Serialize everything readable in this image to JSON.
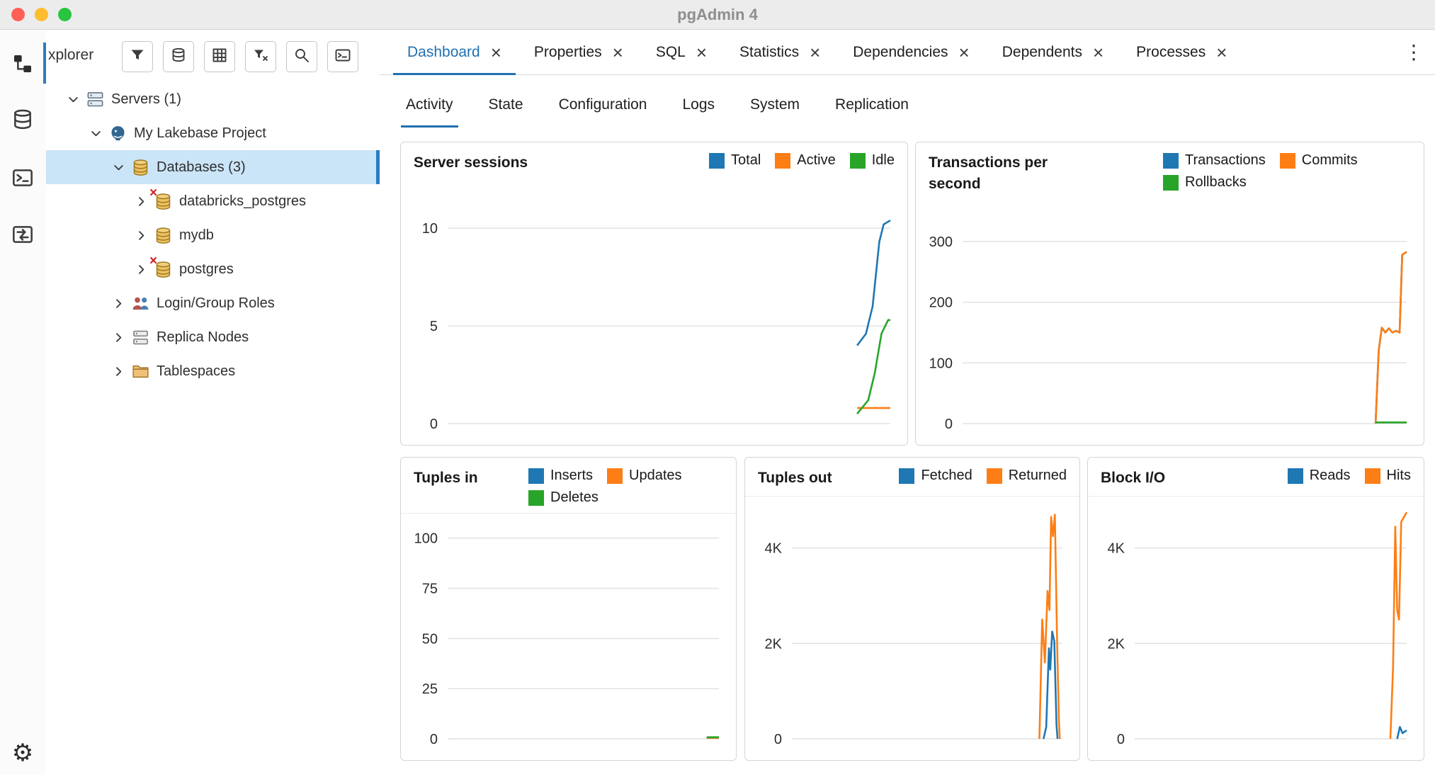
{
  "window": {
    "title": "pgAdmin 4"
  },
  "colors": {
    "accent_blue": "#2170b0",
    "selection_bg": "#cbe5f8",
    "series_blue": "#1f77b4",
    "series_orange": "#fd7e14",
    "series_green": "#28a428",
    "traffic_red": "#ff5f57",
    "traffic_yellow": "#febc2e",
    "traffic_green": "#29c440"
  },
  "left_rail": {
    "icons": [
      {
        "name": "object-explorer-icon",
        "selected": true
      },
      {
        "name": "databases-icon",
        "selected": false
      },
      {
        "name": "psql-terminal-icon",
        "selected": false
      },
      {
        "name": "schema-diff-icon",
        "selected": false
      }
    ],
    "bottom_icon": {
      "name": "preferences-gear-icon",
      "glyph": "⚙"
    }
  },
  "explorer": {
    "header_label": "xplorer",
    "toolbar": [
      {
        "name": "filter-icon"
      },
      {
        "name": "database-icon"
      },
      {
        "name": "table-grid-icon"
      },
      {
        "name": "filter-clear-icon"
      },
      {
        "name": "search-icon"
      },
      {
        "name": "console-icon"
      }
    ],
    "tree": [
      {
        "label": "Servers (1)",
        "depth": 0,
        "expanded": true,
        "icon": "servers",
        "selected": false
      },
      {
        "label": "My Lakebase Project",
        "depth": 1,
        "expanded": true,
        "icon": "postgres-server",
        "selected": false
      },
      {
        "label": "Databases (3)",
        "depth": 2,
        "expanded": true,
        "icon": "databases",
        "selected": true
      },
      {
        "label": "databricks_postgres",
        "depth": 3,
        "expanded": false,
        "icon": "database-disconnected",
        "selected": false
      },
      {
        "label": "mydb",
        "depth": 3,
        "expanded": false,
        "icon": "database",
        "selected": false
      },
      {
        "label": "postgres",
        "depth": 3,
        "expanded": false,
        "icon": "database-disconnected",
        "selected": false
      },
      {
        "label": "Login/Group Roles",
        "depth": 2,
        "expanded": false,
        "icon": "roles",
        "selected": false
      },
      {
        "label": "Replica Nodes",
        "depth": 2,
        "expanded": false,
        "icon": "replica",
        "selected": false
      },
      {
        "label": "Tablespaces",
        "depth": 2,
        "expanded": false,
        "icon": "tablespaces",
        "selected": false
      }
    ]
  },
  "tabs": {
    "items": [
      {
        "label": "Dashboard",
        "active": true,
        "closable": true
      },
      {
        "label": "Properties",
        "active": false,
        "closable": true
      },
      {
        "label": "SQL",
        "active": false,
        "closable": true
      },
      {
        "label": "Statistics",
        "active": false,
        "closable": true
      },
      {
        "label": "Dependencies",
        "active": false,
        "closable": true
      },
      {
        "label": "Dependents",
        "active": false,
        "closable": true
      },
      {
        "label": "Processes",
        "active": false,
        "closable": true
      }
    ],
    "close_glyph": "×",
    "menu_glyph": "⋮"
  },
  "subtabs": {
    "items": [
      "Activity",
      "State",
      "Configuration",
      "Logs",
      "System",
      "Replication"
    ],
    "active_index": 0
  },
  "chart_data": [
    {
      "type": "line",
      "title": "Server sessions",
      "ylim": [
        0,
        12
      ],
      "yticks": [
        {
          "value": 10,
          "label": "10"
        },
        {
          "value": 5,
          "label": "5"
        },
        {
          "value": 0,
          "label": "0"
        }
      ],
      "grid": true,
      "legend_position": "top-right",
      "series": [
        {
          "name": "Total",
          "color": "#1f77b4",
          "points": [
            [
              0.925,
              4.0
            ],
            [
              0.945,
              4.6
            ],
            [
              0.96,
              6.0
            ],
            [
              0.975,
              9.3
            ],
            [
              0.985,
              10.2
            ],
            [
              1,
              10.4
            ]
          ]
        },
        {
          "name": "Active",
          "color": "#fd7e14",
          "points": [
            [
              0.925,
              0.8
            ],
            [
              1,
              0.8
            ]
          ]
        },
        {
          "name": "Idle",
          "color": "#28a428",
          "points": [
            [
              0.925,
              0.5
            ],
            [
              0.95,
              1.2
            ],
            [
              0.965,
              2.6
            ],
            [
              0.98,
              4.6
            ],
            [
              0.995,
              5.3
            ],
            [
              1,
              5.3
            ]
          ]
        }
      ]
    },
    {
      "type": "line",
      "title": "Transactions per second",
      "ylim": [
        0,
        350
      ],
      "yticks": [
        {
          "value": 300,
          "label": "300"
        },
        {
          "value": 200,
          "label": "200"
        },
        {
          "value": 100,
          "label": "100"
        },
        {
          "value": 0,
          "label": "0"
        }
      ],
      "grid": true,
      "legend_position": "top-right",
      "series": [
        {
          "name": "Transactions",
          "color": "#1f77b4",
          "points": [
            [
              0.93,
              0
            ],
            [
              0.937,
              120
            ],
            [
              0.944,
              158
            ],
            [
              0.952,
              150
            ],
            [
              0.96,
              157
            ],
            [
              0.968,
              150
            ],
            [
              0.976,
              153
            ],
            [
              0.984,
              150
            ],
            [
              0.99,
              278
            ],
            [
              1,
              283
            ]
          ]
        },
        {
          "name": "Commits",
          "color": "#fd7e14",
          "points": [
            [
              0.93,
              0
            ],
            [
              0.937,
              120
            ],
            [
              0.944,
              158
            ],
            [
              0.952,
              150
            ],
            [
              0.96,
              157
            ],
            [
              0.968,
              150
            ],
            [
              0.976,
              153
            ],
            [
              0.984,
              150
            ],
            [
              0.99,
              278
            ],
            [
              1,
              283
            ]
          ]
        },
        {
          "name": "Rollbacks",
          "color": "#28a428",
          "points": [
            [
              0.93,
              2
            ],
            [
              1,
              2
            ]
          ]
        }
      ]
    },
    {
      "type": "line",
      "title": "Tuples in",
      "ylim": [
        0,
        108
      ],
      "yticks": [
        {
          "value": 100,
          "label": "100"
        },
        {
          "value": 75,
          "label": "75"
        },
        {
          "value": 50,
          "label": "50"
        },
        {
          "value": 25,
          "label": "25"
        },
        {
          "value": 0,
          "label": "0"
        }
      ],
      "grid": true,
      "legend_position": "top-right",
      "series": [
        {
          "name": "Inserts",
          "color": "#1f77b4",
          "points": [
            [
              0.955,
              0.5
            ],
            [
              1,
              0.5
            ]
          ]
        },
        {
          "name": "Updates",
          "color": "#fd7e14",
          "points": [
            [
              0.955,
              0.5
            ],
            [
              1,
              0.5
            ]
          ]
        },
        {
          "name": "Deletes",
          "color": "#28a428",
          "points": [
            [
              0.955,
              0.8
            ],
            [
              1,
              0.8
            ]
          ]
        }
      ]
    },
    {
      "type": "line",
      "title": "Tuples out",
      "ylim": [
        0,
        4900
      ],
      "yticks": [
        {
          "value": 4000,
          "label": "4K"
        },
        {
          "value": 2000,
          "label": "2K"
        },
        {
          "value": 0,
          "label": "0"
        }
      ],
      "grid": true,
      "legend_position": "top-right",
      "series": [
        {
          "name": "Fetched",
          "color": "#1f77b4",
          "points": [
            [
              0.93,
              0
            ],
            [
              0.94,
              250
            ],
            [
              0.95,
              1900
            ],
            [
              0.955,
              1450
            ],
            [
              0.962,
              2250
            ],
            [
              0.97,
              2050
            ],
            [
              0.978,
              300
            ],
            [
              0.982,
              0
            ]
          ]
        },
        {
          "name": "Returned",
          "color": "#fd7e14",
          "points": [
            [
              0.915,
              0
            ],
            [
              0.925,
              2500
            ],
            [
              0.935,
              1600
            ],
            [
              0.945,
              3100
            ],
            [
              0.952,
              2700
            ],
            [
              0.958,
              4650
            ],
            [
              0.965,
              4250
            ],
            [
              0.972,
              4700
            ],
            [
              0.98,
              2100
            ],
            [
              0.987,
              400
            ],
            [
              0.99,
              0
            ]
          ]
        }
      ]
    },
    {
      "type": "line",
      "title": "Block I/O",
      "ylim": [
        0,
        4900
      ],
      "yticks": [
        {
          "value": 4000,
          "label": "4K"
        },
        {
          "value": 2000,
          "label": "2K"
        },
        {
          "value": 0,
          "label": "0"
        }
      ],
      "grid": true,
      "legend_position": "top-right",
      "series": [
        {
          "name": "Reads",
          "color": "#1f77b4",
          "points": [
            [
              0.965,
              0
            ],
            [
              0.975,
              250
            ],
            [
              0.985,
              120
            ],
            [
              1,
              180
            ]
          ]
        },
        {
          "name": "Hits",
          "color": "#fd7e14",
          "points": [
            [
              0.94,
              0
            ],
            [
              0.95,
              1500
            ],
            [
              0.958,
              4450
            ],
            [
              0.965,
              2700
            ],
            [
              0.972,
              2500
            ],
            [
              0.98,
              4550
            ],
            [
              0.99,
              4650
            ],
            [
              1,
              4750
            ]
          ]
        }
      ]
    }
  ]
}
